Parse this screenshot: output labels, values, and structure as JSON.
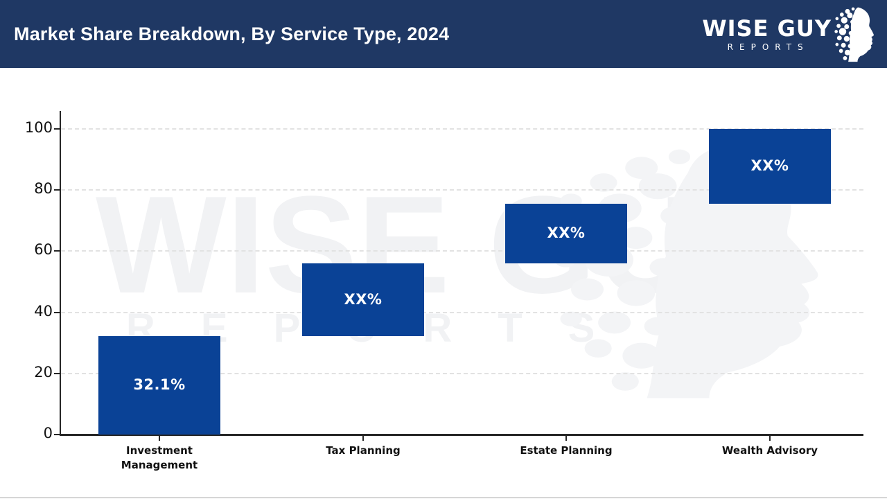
{
  "header": {
    "title": "Market Share Breakdown, By Service Type, 2024",
    "logo": {
      "line1": "WISE GUY",
      "line2": "REPORTS"
    }
  },
  "watermark": {
    "line1": "WISE GUY",
    "line2": "REPORTS"
  },
  "colors": {
    "header_bg": "#1f3864",
    "bar": "#0a4296",
    "axis": "#262626",
    "gridline": "#e2e2e2",
    "watermark": "#f1f2f4",
    "bar_label_text": "#ffffff",
    "title_text": "#ffffff"
  },
  "chart_data": {
    "type": "bar",
    "subtype": "waterfall-breakdown",
    "title": "Market Share Breakdown, By Service Type, 2024",
    "categories": [
      "Investment Management",
      "Tax Planning",
      "Estate Planning",
      "Wealth Advisory"
    ],
    "segments": [
      {
        "category": "Investment Management",
        "start": 0,
        "end": 32.1,
        "label": "32.1%"
      },
      {
        "category": "Tax Planning",
        "start": 32.1,
        "end": 56.0,
        "label": "XX%"
      },
      {
        "category": "Estate Planning",
        "start": 56.0,
        "end": 75.4,
        "label": "XX%"
      },
      {
        "category": "Wealth Advisory",
        "start": 75.4,
        "end": 100,
        "label": "XX%"
      }
    ],
    "xlabel": "",
    "ylabel": "",
    "ylim": [
      0,
      106
    ],
    "yticks": [
      0,
      20,
      40,
      60,
      80,
      100
    ],
    "grid": "horizontal-dashed",
    "legend": "none"
  }
}
